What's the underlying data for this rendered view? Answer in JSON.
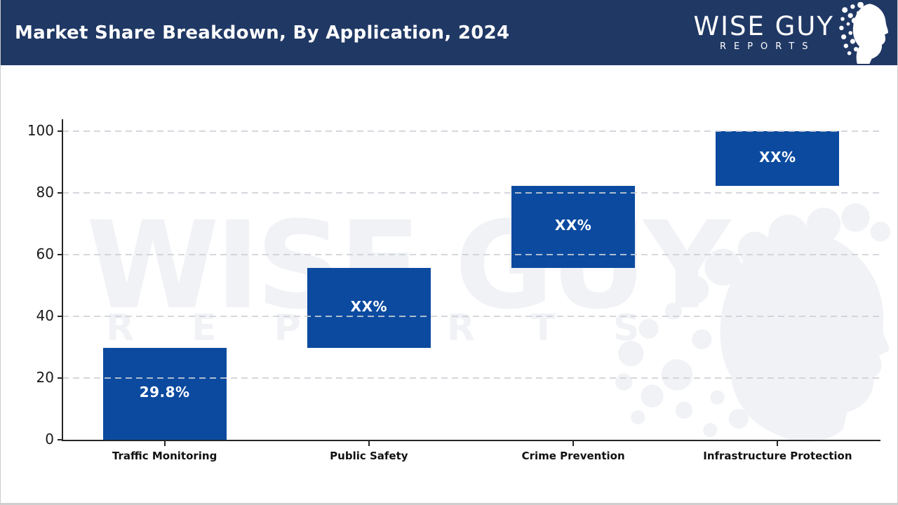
{
  "header": {
    "title": "Market Share Breakdown, By Application, 2024",
    "logo": {
      "line1": "WISE GUY",
      "line2": "REPORTS"
    }
  },
  "watermark": {
    "text1": "WISE GUY",
    "text2": "REPORTS"
  },
  "chart_data": {
    "type": "bar",
    "subtype": "waterfall",
    "title": "Market Share Breakdown, By Application, 2024",
    "categories": [
      "Traffic Monitoring",
      "Public Safety",
      "Crime Prevention",
      "Infrastructure Protection"
    ],
    "bars": [
      {
        "category": "Traffic Monitoring",
        "start": 0,
        "end": 29.8,
        "label": "29.8%"
      },
      {
        "category": "Public Safety",
        "start": 29.8,
        "end": 55.7,
        "label": "XX%"
      },
      {
        "category": "Crime Prevention",
        "start": 55.7,
        "end": 82.3,
        "label": "XX%"
      },
      {
        "category": "Infrastructure Protection",
        "start": 82.3,
        "end": 100,
        "label": "XX%"
      }
    ],
    "xlabel": "",
    "ylabel": "",
    "ylim": [
      0,
      100
    ],
    "yticks": [
      0,
      20,
      40,
      60,
      80,
      100
    ],
    "grid": "horizontal-dashed",
    "legend": "none",
    "bar_color": "#0b4a9f",
    "bar_label_color": "#ffffff"
  },
  "colors": {
    "header_bg": "#203864",
    "bar": "#0b4a9f",
    "axis": "#262626",
    "grid": "#ccd0d6",
    "watermark": "#f1f2f5",
    "title_text": "#ffffff"
  }
}
